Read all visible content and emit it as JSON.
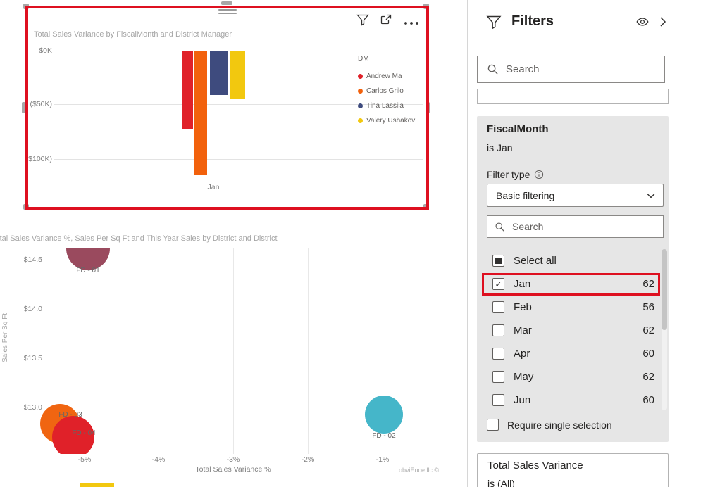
{
  "highlight_color": "#DE1020",
  "chart_data": [
    {
      "type": "bar",
      "title": "Total Sales Variance by FiscalMonth and District Manager",
      "categories": [
        "Jan"
      ],
      "legend_title": "DM",
      "legend_position": "right",
      "series": [
        {
          "name": "Andrew Ma",
          "color": "#E02129",
          "values": [
            -73
          ]
        },
        {
          "name": "Carlos Grilo",
          "color": "#F2610C",
          "values": [
            -115
          ]
        },
        {
          "name": "Tina Lassila",
          "color": "#3E4B7E",
          "values": [
            -41
          ]
        },
        {
          "name": "Valery Ushakov",
          "color": "#F2C80F",
          "values": [
            -44
          ]
        }
      ],
      "y_ticks": [
        "$0K",
        "($50K)",
        "($100K)"
      ],
      "ylim": [
        -125,
        0
      ],
      "grid": true
    },
    {
      "type": "scatter",
      "title": "Total Sales Variance %, Sales Per Sq Ft and This Year Sales by District and District",
      "xlabel": "Total Sales Variance %",
      "ylabel": "Sales Per Sq Ft",
      "x_ticks": [
        "-5%",
        "-4%",
        "-3%",
        "-2%",
        "-1%"
      ],
      "y_ticks": [
        "$14.5",
        "$14.0",
        "$13.5",
        "$13.0"
      ],
      "xlim": [
        -5.55,
        -0.55
      ],
      "ylim": [
        12.55,
        14.62
      ],
      "points": [
        {
          "label": "FD - 01",
          "x": -4.95,
          "y": 14.61,
          "r": 31,
          "color": "#9A4A5E"
        },
        {
          "label": "FD - 03",
          "x": -5.33,
          "y": 12.83,
          "r": 28,
          "color": "#F06511"
        },
        {
          "label": "FD - 04",
          "x": -5.15,
          "y": 12.69,
          "r": 30,
          "color": "#E02129"
        },
        {
          "label": "FD - 02",
          "x": -0.97,
          "y": 12.92,
          "r": 27,
          "color": "#45B6C9"
        }
      ],
      "watermark": "obviEnce llc ©",
      "grid": "vertical-only"
    }
  ],
  "filters_pane": {
    "title": "Filters",
    "search_placeholder": "Search",
    "fiscal_month_card": {
      "title": "FiscalMonth",
      "applied_text": "is Jan",
      "filter_type_label": "Filter type",
      "filter_type_value": "Basic filtering",
      "search_placeholder": "Search",
      "select_all": {
        "label": "Select all",
        "state": "indeterminate"
      },
      "options": [
        {
          "label": "Jan",
          "count": "62",
          "checked": true
        },
        {
          "label": "Feb",
          "count": "56",
          "checked": false
        },
        {
          "label": "Mar",
          "count": "62",
          "checked": false
        },
        {
          "label": "Apr",
          "count": "60",
          "checked": false
        },
        {
          "label": "May",
          "count": "62",
          "checked": false
        },
        {
          "label": "Jun",
          "count": "60",
          "checked": false
        }
      ],
      "require_single_selection_label": "Require single selection"
    },
    "next_card": {
      "title": "Total Sales Variance",
      "applied_text": "is (All)"
    }
  }
}
